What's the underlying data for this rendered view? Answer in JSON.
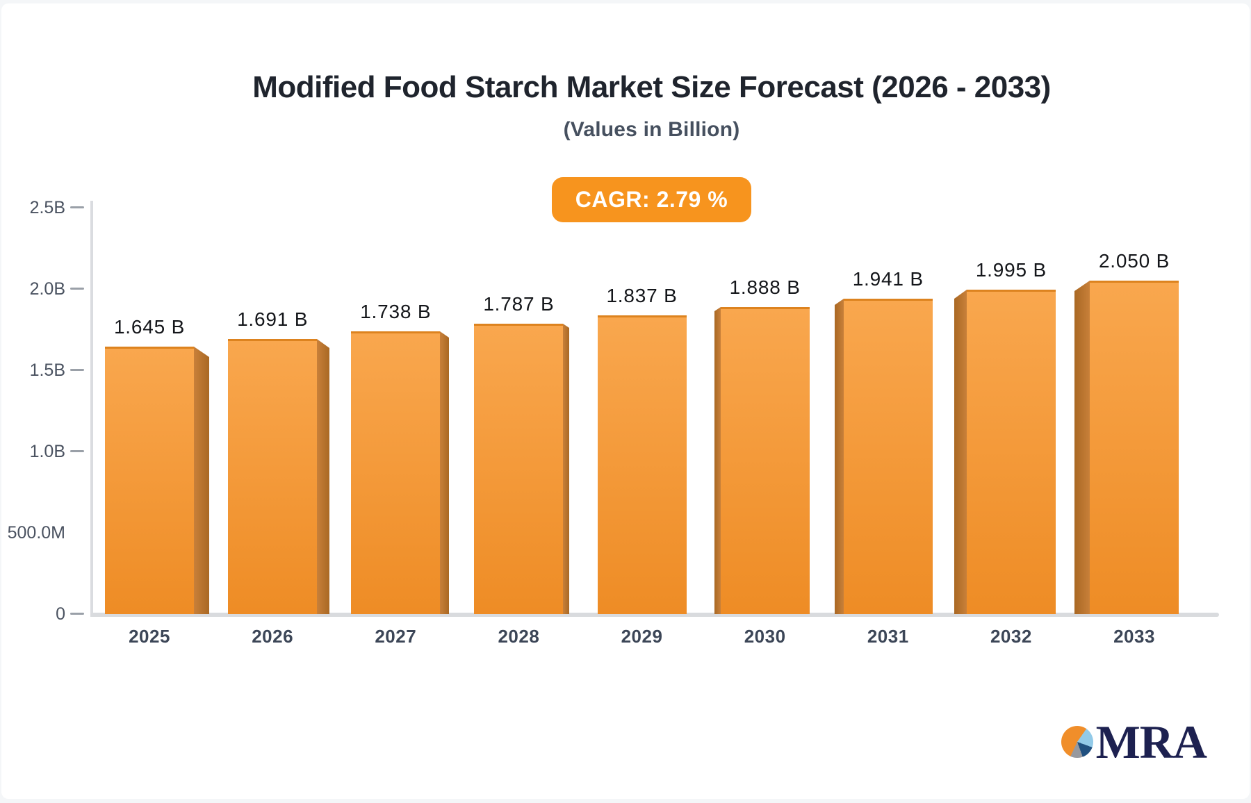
{
  "chart_data": {
    "type": "bar",
    "title": "Modified Food Starch Market Size Forecast (2026 - 2033)",
    "subtitle": "(Values in Billion)",
    "cagr_label": "CAGR: 2.79 %",
    "categories": [
      "2025",
      "2026",
      "2027",
      "2028",
      "2029",
      "2030",
      "2031",
      "2032",
      "2033"
    ],
    "values": [
      1.645,
      1.691,
      1.738,
      1.787,
      1.837,
      1.888,
      1.941,
      1.995,
      2.05
    ],
    "value_labels": [
      "1.645 B",
      "1.691 B",
      "1.738 B",
      "1.787 B",
      "1.837 B",
      "1.888 B",
      "1.941 B",
      "1.995 B",
      "2.050 B"
    ],
    "xlabel": "",
    "ylabel": "",
    "ylim": [
      0,
      2.5
    ],
    "yticks": [
      {
        "label": "2.5B",
        "value": 2.5,
        "dash": true
      },
      {
        "label": "2.0B",
        "value": 2.0,
        "dash": true
      },
      {
        "label": "1.5B",
        "value": 1.5,
        "dash": true
      },
      {
        "label": "1.0B",
        "value": 1.0,
        "dash": true
      },
      {
        "label": "500.0M",
        "value": 0.5,
        "dash": false
      },
      {
        "label": "0",
        "value": 0,
        "dash": true
      }
    ],
    "grid": false,
    "legend": false,
    "colors": {
      "bar_top": "#f9a74e",
      "bar_bottom": "#ee8c25",
      "bar_side": "#ba7229",
      "badge": "#f7941e",
      "axis": "#dadce0"
    }
  },
  "logo": {
    "text": "MRA",
    "pie_colors": [
      "#f08e2a",
      "#92cae8",
      "#20507f",
      "#97999e"
    ]
  }
}
